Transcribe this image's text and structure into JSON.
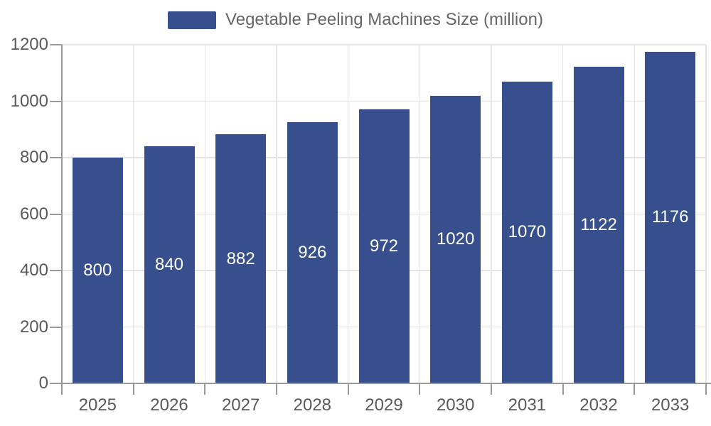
{
  "chart_data": {
    "type": "bar",
    "title": "Vegetable Peeling Machines Size (million)",
    "categories": [
      "2025",
      "2026",
      "2027",
      "2028",
      "2029",
      "2030",
      "2031",
      "2032",
      "2033"
    ],
    "values": [
      800,
      840,
      882,
      926,
      972,
      1020,
      1070,
      1122,
      1176
    ],
    "xlabel": "",
    "ylabel": "",
    "ylim": [
      0,
      1200
    ],
    "ytick_step": 200,
    "grid": true,
    "legend_position": "top-center",
    "value_labels": "inside-center"
  },
  "colors": {
    "bar": "#37508d",
    "grid": "#e4e4e4",
    "axis": "#999999",
    "axis_text": "#5a5a5a",
    "legend_text": "#666666",
    "value_text": "#ffffff"
  }
}
